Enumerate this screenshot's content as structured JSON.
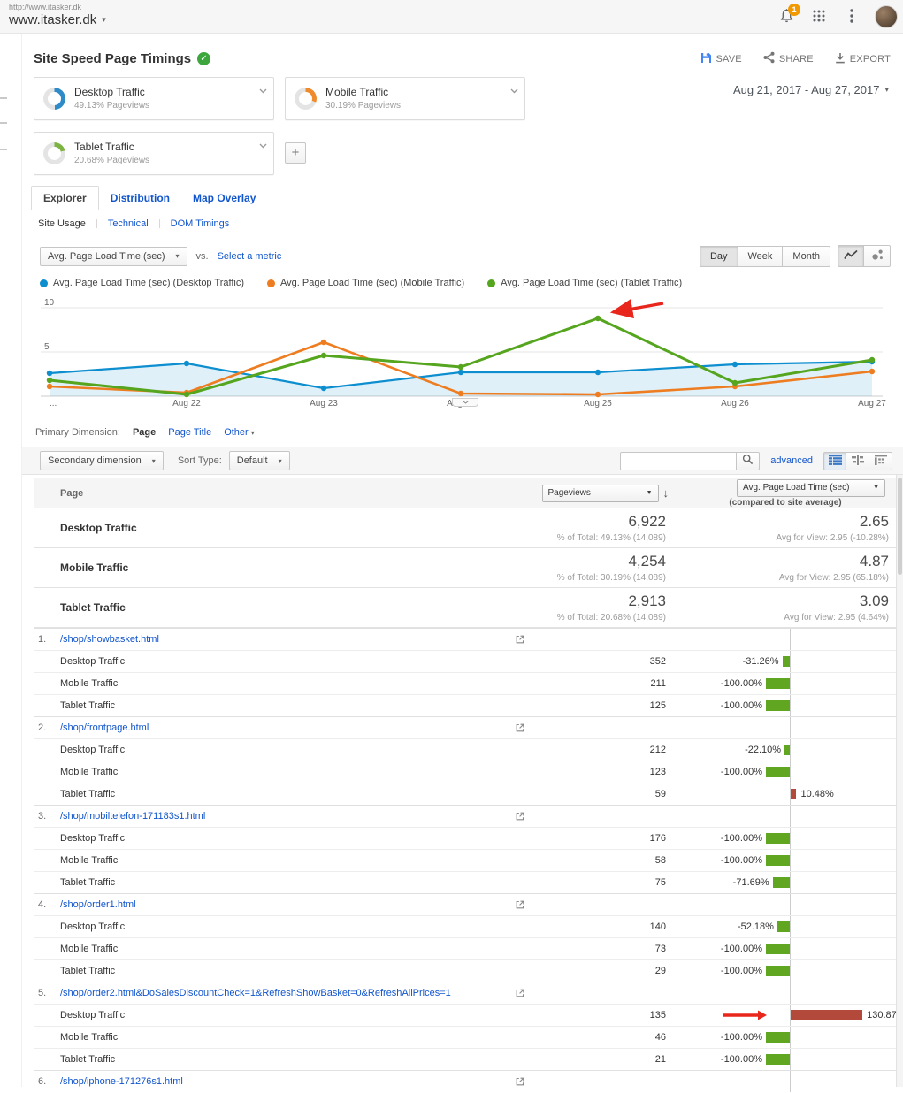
{
  "topbar": {
    "url": "http://www.itasker.dk",
    "account": "www.itasker.dk",
    "notification_count": "1"
  },
  "report": {
    "title": "Site Speed Page Timings",
    "save": "SAVE",
    "share": "SHARE",
    "export": "EXPORT",
    "date_range": "Aug 21, 2017 - Aug 27, 2017"
  },
  "segments": [
    {
      "name": "Desktop Traffic",
      "detail": "49.13% Pageviews",
      "pct": 49.13,
      "color": "#2e8bc7"
    },
    {
      "name": "Mobile Traffic",
      "detail": "30.19% Pageviews",
      "pct": 30.19,
      "color": "#ef8b2c"
    },
    {
      "name": "Tablet Traffic",
      "detail": "20.68% Pageviews",
      "pct": 20.68,
      "color": "#7cb342"
    }
  ],
  "tabs": {
    "explorer": "Explorer",
    "distribution": "Distribution",
    "map_overlay": "Map Overlay"
  },
  "subtabs": {
    "site_usage": "Site Usage",
    "technical": "Technical",
    "dom_timings": "DOM Timings"
  },
  "metric_bar": {
    "metric_button": "Avg. Page Load Time (sec)",
    "vs_label": "vs.",
    "select_metric": "Select a metric",
    "day": "Day",
    "week": "Week",
    "month": "Month"
  },
  "chart_data": {
    "type": "line",
    "title": "Avg. Page Load Time (sec) by day",
    "x_labels": [
      "...",
      "Aug 22",
      "Aug 23",
      "Aug 24",
      "Aug 25",
      "Aug 26",
      "Aug 27"
    ],
    "ylim": [
      0,
      10
    ],
    "yticks": [
      5,
      10
    ],
    "grid": true,
    "legend_position": "top",
    "series": [
      {
        "name": "Avg. Page Load Time (sec) (Desktop Traffic)",
        "color": "#0d8ecf",
        "fill": true,
        "values": [
          2.6,
          3.7,
          0.9,
          2.7,
          2.7,
          3.6,
          3.9
        ]
      },
      {
        "name": "Avg. Page Load Time (sec) (Mobile Traffic)",
        "color": "#ed7d20",
        "fill": false,
        "values": [
          1.1,
          0.4,
          6.1,
          0.3,
          0.2,
          1.1,
          2.8
        ]
      },
      {
        "name": "Avg. Page Load Time (sec) (Tablet Traffic)",
        "color": "#56a51f",
        "fill": false,
        "values": [
          1.8,
          0.2,
          4.6,
          3.3,
          8.8,
          1.5,
          4.1
        ]
      }
    ],
    "annotation": {
      "type": "arrow",
      "series": 2,
      "point_index": 4,
      "color": "#e8261c"
    }
  },
  "dimension_bar": {
    "label": "Primary Dimension:",
    "primary": "Page",
    "alt": "Page Title",
    "other": "Other"
  },
  "toolbar": {
    "secondary_dimension": "Secondary dimension",
    "sort_type_label": "Sort Type:",
    "sort_type_value": "Default",
    "search_value": "",
    "advanced": "advanced"
  },
  "table": {
    "page_header": "Page",
    "pageviews_header": "Pageviews",
    "metric_header": "Avg. Page Load Time (sec)",
    "metric_note": "(compared to site average)",
    "bar_colors": {
      "positive": "#b2493b",
      "negative": "#61a621"
    },
    "summary_rows": [
      {
        "label": "Desktop Traffic",
        "pageviews": "6,922",
        "pageviews_note": "% of Total: 49.13% (14,089)",
        "metric": "2.65",
        "metric_note": "Avg for View: 2.95 (-10.28%)"
      },
      {
        "label": "Mobile Traffic",
        "pageviews": "4,254",
        "pageviews_note": "% of Total: 30.19% (14,089)",
        "metric": "4.87",
        "metric_note": "Avg for View: 2.95 (65.18%)"
      },
      {
        "label": "Tablet Traffic",
        "pageviews": "2,913",
        "pageviews_note": "% of Total: 20.68% (14,089)",
        "metric": "3.09",
        "metric_note": "Avg for View: 2.95 (4.64%)"
      }
    ],
    "pages": [
      {
        "index": "1.",
        "url": "/shop/showbasket.html",
        "rows": [
          {
            "segment": "Desktop Traffic",
            "pageviews": "352",
            "pct": -31.26,
            "pct_label": "-31.26%"
          },
          {
            "segment": "Mobile Traffic",
            "pageviews": "211",
            "pct": -100.0,
            "pct_label": "-100.00%"
          },
          {
            "segment": "Tablet Traffic",
            "pageviews": "125",
            "pct": -100.0,
            "pct_label": "-100.00%"
          }
        ]
      },
      {
        "index": "2.",
        "url": "/shop/frontpage.html",
        "rows": [
          {
            "segment": "Desktop Traffic",
            "pageviews": "212",
            "pct": -22.1,
            "pct_label": "-22.10%"
          },
          {
            "segment": "Mobile Traffic",
            "pageviews": "123",
            "pct": -100.0,
            "pct_label": "-100.00%"
          },
          {
            "segment": "Tablet Traffic",
            "pageviews": "59",
            "pct": 10.48,
            "pct_label": "10.48%"
          }
        ]
      },
      {
        "index": "3.",
        "url": "/shop/mobiltelefon-171183s1.html",
        "rows": [
          {
            "segment": "Desktop Traffic",
            "pageviews": "176",
            "pct": -100.0,
            "pct_label": "-100.00%"
          },
          {
            "segment": "Mobile Traffic",
            "pageviews": "58",
            "pct": -100.0,
            "pct_label": "-100.00%"
          },
          {
            "segment": "Tablet Traffic",
            "pageviews": "75",
            "pct": -71.69,
            "pct_label": "-71.69%"
          }
        ]
      },
      {
        "index": "4.",
        "url": "/shop/order1.html",
        "rows": [
          {
            "segment": "Desktop Traffic",
            "pageviews": "140",
            "pct": -52.18,
            "pct_label": "-52.18%"
          },
          {
            "segment": "Mobile Traffic",
            "pageviews": "73",
            "pct": -100.0,
            "pct_label": "-100.00%"
          },
          {
            "segment": "Tablet Traffic",
            "pageviews": "29",
            "pct": -100.0,
            "pct_label": "-100.00%"
          }
        ]
      },
      {
        "index": "5.",
        "url": "/shop/order2.html&DoSalesDiscountCheck=1&RefreshShowBasket=0&RefreshAllPrices=1",
        "rows": [
          {
            "segment": "Desktop Traffic",
            "pageviews": "135",
            "pct": 130.87,
            "pct_label": "130.87%",
            "arrow": true
          },
          {
            "segment": "Mobile Traffic",
            "pageviews": "46",
            "pct": -100.0,
            "pct_label": "-100.00%"
          },
          {
            "segment": "Tablet Traffic",
            "pageviews": "21",
            "pct": -100.0,
            "pct_label": "-100.00%"
          }
        ]
      },
      {
        "index": "6.",
        "url": "/shop/iphone-171276s1.html",
        "rows": []
      }
    ]
  }
}
